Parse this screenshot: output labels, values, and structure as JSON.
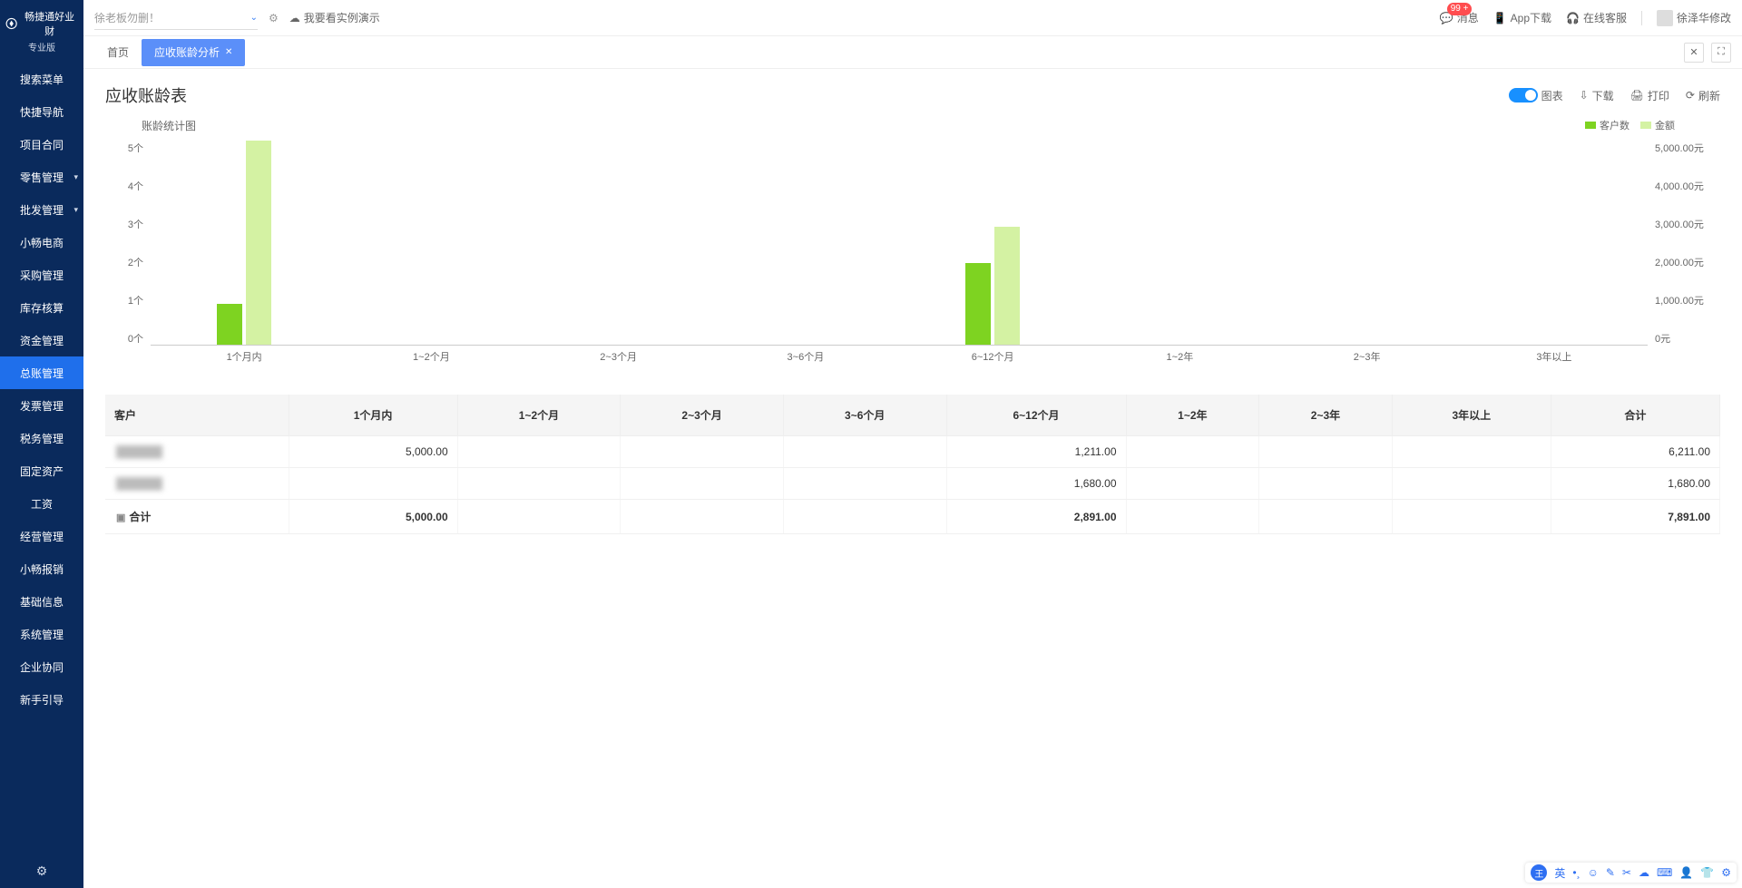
{
  "brand": {
    "name": "畅捷通好业财",
    "edition": "专业版"
  },
  "sidebar": {
    "items": [
      {
        "label": "搜索菜单",
        "sub": false
      },
      {
        "label": "快捷导航",
        "sub": false
      },
      {
        "label": "项目合同",
        "sub": false
      },
      {
        "label": "零售管理",
        "sub": true
      },
      {
        "label": "批发管理",
        "sub": true
      },
      {
        "label": "小畅电商",
        "sub": false
      },
      {
        "label": "采购管理",
        "sub": false
      },
      {
        "label": "库存核算",
        "sub": false
      },
      {
        "label": "资金管理",
        "sub": false
      },
      {
        "label": "总账管理",
        "sub": false,
        "active": true
      },
      {
        "label": "发票管理",
        "sub": false
      },
      {
        "label": "税务管理",
        "sub": false
      },
      {
        "label": "固定资产",
        "sub": false
      },
      {
        "label": "工资",
        "sub": false
      },
      {
        "label": "经营管理",
        "sub": false
      },
      {
        "label": "小畅报销",
        "sub": false
      },
      {
        "label": "基础信息",
        "sub": false
      },
      {
        "label": "系统管理",
        "sub": false
      },
      {
        "label": "企业协同",
        "sub": false
      },
      {
        "label": "新手引导",
        "sub": false
      }
    ]
  },
  "topbar": {
    "account": "徐老板勿删！",
    "demo": "我要看实例演示",
    "msg": "消息",
    "msg_badge": "99 +",
    "download": "App下载",
    "service": "在线客服",
    "user": "徐泽华修改"
  },
  "tabs": {
    "items": [
      {
        "label": "首页",
        "closable": false
      },
      {
        "label": "应收账龄分析",
        "closable": true,
        "active": true
      }
    ]
  },
  "page": {
    "title": "应收账龄表",
    "actions": {
      "chart": "图表",
      "download": "下载",
      "print": "打印",
      "refresh": "刷新"
    }
  },
  "chart": {
    "title": "账龄统计图",
    "legend": [
      {
        "label": "客户数",
        "color": "#7ed321"
      },
      {
        "label": "金额",
        "color": "#d4f2a3"
      }
    ],
    "categories": [
      "1个月内",
      "1~2个月",
      "2~3个月",
      "3~6个月",
      "6~12个月",
      "1~2年",
      "2~3年",
      "3年以上"
    ],
    "series_customers": [
      1,
      0,
      0,
      0,
      2,
      0,
      0,
      0
    ],
    "series_amount": [
      5000,
      0,
      0,
      0,
      2891,
      0,
      0,
      0
    ],
    "y_left": {
      "max": 5,
      "ticks": [
        "5个",
        "4个",
        "3个",
        "2个",
        "1个",
        "0个"
      ]
    },
    "y_right": {
      "max": 5000,
      "ticks": [
        "5,000.00元",
        "4,000.00元",
        "3,000.00元",
        "2,000.00元",
        "1,000.00元",
        "0元"
      ]
    },
    "colors": {
      "customers": "#7ed321",
      "amount": "#d4f2a3"
    }
  },
  "table": {
    "columns": [
      "客户",
      "1个月内",
      "1~2个月",
      "2~3个月",
      "3~6个月",
      "6~12个月",
      "1~2年",
      "2~3年",
      "3年以上",
      "合计"
    ],
    "rows": [
      {
        "cells": [
          "██████",
          "5,000.00",
          "",
          "",
          "",
          "1,211.00",
          "",
          "",
          "",
          "6,211.00"
        ],
        "blur_first": true
      },
      {
        "cells": [
          "██████",
          "",
          "",
          "",
          "",
          "1,680.00",
          "",
          "",
          "",
          "1,680.00"
        ],
        "blur_first": true
      }
    ],
    "total": {
      "label": "合计",
      "cells": [
        "5,000.00",
        "",
        "",
        "",
        "2,891.00",
        "",
        "",
        "",
        "7,891.00"
      ]
    }
  },
  "ime": {
    "mark": "王",
    "lang": "英"
  }
}
